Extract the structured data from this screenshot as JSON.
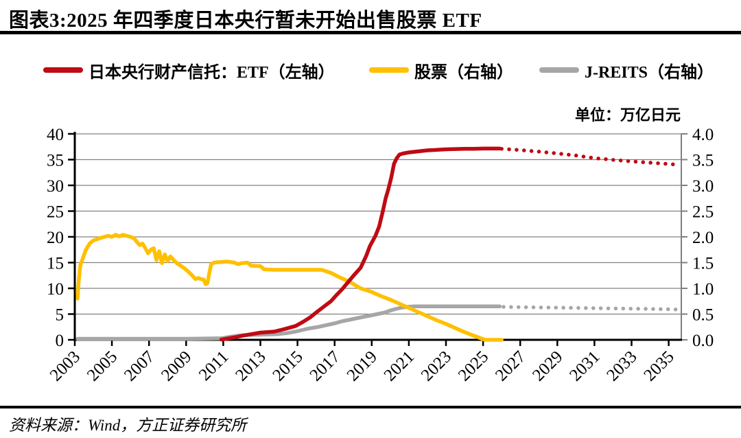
{
  "title": "图表3:2025 年四季度日本央行暂未开始出售股票 ETF",
  "unit_label": "单位：万亿日元",
  "source": "资料来源：Wind，方正证券研究所",
  "colors": {
    "etf_red": "#BE0B14",
    "stocks_yellow": "#FFC000",
    "jreits_gray": "#A6A6A6",
    "gridline": "#808080",
    "axis_black": "#000000",
    "right_axis_gray": "#7F7F7F"
  },
  "legend": [
    {
      "label": "日本央行财产信托：ETF（左轴）",
      "color": "#BE0B14"
    },
    {
      "label": "股票（右轴）",
      "color": "#FFC000"
    },
    {
      "label": "J-REITS（右轴）",
      "color": "#A6A6A6"
    }
  ],
  "chart_data": {
    "type": "line",
    "title": "2025 年四季度日本央行暂未开始出售股票 ETF",
    "unit": "万亿日元",
    "x_axis": {
      "ticks": [
        2003,
        2005,
        2007,
        2009,
        2011,
        2013,
        2015,
        2017,
        2019,
        2021,
        2023,
        2025,
        2027,
        2029,
        2031,
        2033,
        2035
      ],
      "range": [
        2003,
        2035.5
      ]
    },
    "y_left": {
      "tick_labels": [
        "0",
        "5",
        "10",
        "15",
        "20",
        "25",
        "30",
        "35",
        "40"
      ],
      "range": [
        0,
        40
      ]
    },
    "y_right": {
      "tick_labels": [
        "0.0",
        "0.5",
        "1.0",
        "1.5",
        "2.0",
        "2.5",
        "3.0",
        "3.5",
        "4.0"
      ],
      "range": [
        0,
        4
      ]
    },
    "forecast_start": 2026,
    "series": [
      {
        "name": "日本央行财产信托：ETF（左轴）",
        "key": "etf",
        "axis": "left",
        "color": "#BE0B14",
        "solid": [
          [
            2010.9,
            0.05
          ],
          [
            2011.3,
            0.3
          ],
          [
            2011.7,
            0.55
          ],
          [
            2012.1,
            0.85
          ],
          [
            2012.5,
            1.1
          ],
          [
            2013.0,
            1.4
          ],
          [
            2013.75,
            1.6
          ],
          [
            2014.3,
            2.1
          ],
          [
            2014.9,
            2.7
          ],
          [
            2015.3,
            3.5
          ],
          [
            2015.7,
            4.4
          ],
          [
            2016.0,
            5.3
          ],
          [
            2016.4,
            6.4
          ],
          [
            2016.8,
            7.5
          ],
          [
            2017.1,
            8.7
          ],
          [
            2017.4,
            9.8
          ],
          [
            2017.7,
            11.1
          ],
          [
            2018.0,
            12.4
          ],
          [
            2018.4,
            14.0
          ],
          [
            2018.7,
            16.3
          ],
          [
            2018.9,
            18.2
          ],
          [
            2019.2,
            20.2
          ],
          [
            2019.4,
            22.0
          ],
          [
            2019.6,
            25.0
          ],
          [
            2019.75,
            27.5
          ],
          [
            2019.9,
            29.3
          ],
          [
            2020.05,
            31.5
          ],
          [
            2020.2,
            34.2
          ],
          [
            2020.35,
            35.3
          ],
          [
            2020.5,
            36.0
          ],
          [
            2020.7,
            36.2
          ],
          [
            2021.0,
            36.4
          ],
          [
            2021.5,
            36.6
          ],
          [
            2022.0,
            36.8
          ],
          [
            2022.5,
            36.9
          ],
          [
            2023.0,
            37.0
          ],
          [
            2023.5,
            37.05
          ],
          [
            2024.0,
            37.1
          ],
          [
            2024.5,
            37.1
          ],
          [
            2025.0,
            37.15
          ],
          [
            2025.5,
            37.15
          ],
          [
            2025.9,
            37.15
          ]
        ],
        "dotted": [
          [
            2026.0,
            37.1
          ],
          [
            2027.0,
            36.85
          ],
          [
            2028.0,
            36.55
          ],
          [
            2029.0,
            36.2
          ],
          [
            2030.0,
            35.8
          ],
          [
            2031.0,
            35.3
          ],
          [
            2032.0,
            34.95
          ],
          [
            2033.0,
            34.65
          ],
          [
            2034.0,
            34.4
          ],
          [
            2035.0,
            34.15
          ],
          [
            2035.5,
            34.0
          ]
        ]
      },
      {
        "name": "股票（右轴）",
        "key": "stocks",
        "axis": "right",
        "color": "#FFC000",
        "solid": [
          [
            2003.15,
            0.8
          ],
          [
            2003.2,
            1.1
          ],
          [
            2003.3,
            1.45
          ],
          [
            2003.45,
            1.6
          ],
          [
            2003.6,
            1.75
          ],
          [
            2003.8,
            1.87
          ],
          [
            2004.0,
            1.93
          ],
          [
            2004.3,
            1.97
          ],
          [
            2004.6,
            2.0
          ],
          [
            2004.8,
            2.02
          ],
          [
            2005.0,
            2.0
          ],
          [
            2005.2,
            2.04
          ],
          [
            2005.4,
            2.01
          ],
          [
            2005.6,
            2.04
          ],
          [
            2005.8,
            2.02
          ],
          [
            2006.0,
            2.0
          ],
          [
            2006.2,
            1.97
          ],
          [
            2006.35,
            1.9
          ],
          [
            2006.5,
            1.84
          ],
          [
            2006.65,
            1.87
          ],
          [
            2006.8,
            1.78
          ],
          [
            2006.95,
            1.68
          ],
          [
            2007.1,
            1.75
          ],
          [
            2007.25,
            1.78
          ],
          [
            2007.4,
            1.55
          ],
          [
            2007.55,
            1.72
          ],
          [
            2007.7,
            1.49
          ],
          [
            2007.85,
            1.66
          ],
          [
            2008.0,
            1.53
          ],
          [
            2008.15,
            1.62
          ],
          [
            2008.3,
            1.56
          ],
          [
            2008.5,
            1.49
          ],
          [
            2008.7,
            1.44
          ],
          [
            2008.9,
            1.39
          ],
          [
            2009.1,
            1.33
          ],
          [
            2009.3,
            1.26
          ],
          [
            2009.5,
            1.18
          ],
          [
            2009.65,
            1.2
          ],
          [
            2009.8,
            1.18
          ],
          [
            2009.95,
            1.17
          ],
          [
            2010.05,
            1.08
          ],
          [
            2010.15,
            1.1
          ],
          [
            2010.25,
            1.3
          ],
          [
            2010.35,
            1.47
          ],
          [
            2010.5,
            1.5
          ],
          [
            2010.8,
            1.51
          ],
          [
            2011.2,
            1.52
          ],
          [
            2011.6,
            1.5
          ],
          [
            2011.8,
            1.47
          ],
          [
            2012.0,
            1.49
          ],
          [
            2012.3,
            1.5
          ],
          [
            2012.5,
            1.44
          ],
          [
            2013.0,
            1.43
          ],
          [
            2013.2,
            1.37
          ],
          [
            2013.7,
            1.36
          ],
          [
            2014.5,
            1.36
          ],
          [
            2015.3,
            1.36
          ],
          [
            2016.3,
            1.36
          ],
          [
            2016.8,
            1.3
          ],
          [
            2017.3,
            1.21
          ],
          [
            2017.8,
            1.13
          ],
          [
            2018.4,
            1.0
          ],
          [
            2019.0,
            0.93
          ],
          [
            2019.5,
            0.85
          ],
          [
            2020.0,
            0.78
          ],
          [
            2020.5,
            0.7
          ],
          [
            2021.0,
            0.62
          ],
          [
            2021.5,
            0.54
          ],
          [
            2022.0,
            0.46
          ],
          [
            2022.5,
            0.38
          ],
          [
            2023.0,
            0.31
          ],
          [
            2023.5,
            0.23
          ],
          [
            2024.0,
            0.15
          ],
          [
            2024.5,
            0.08
          ],
          [
            2025.1,
            0.0
          ],
          [
            2026.0,
            0.0
          ]
        ],
        "dotted": []
      },
      {
        "name": "J-REITS（右轴）",
        "key": "jreits",
        "axis": "right",
        "color": "#A6A6A6",
        "solid": [
          [
            2003.15,
            0.02
          ],
          [
            2005.0,
            0.02
          ],
          [
            2007.0,
            0.02
          ],
          [
            2009.0,
            0.02
          ],
          [
            2010.0,
            0.025
          ],
          [
            2010.9,
            0.03
          ],
          [
            2011.4,
            0.06
          ],
          [
            2011.9,
            0.085
          ],
          [
            2012.4,
            0.095
          ],
          [
            2012.9,
            0.1
          ],
          [
            2013.4,
            0.105
          ],
          [
            2013.9,
            0.11
          ],
          [
            2014.4,
            0.13
          ],
          [
            2014.9,
            0.16
          ],
          [
            2015.6,
            0.22
          ],
          [
            2016.1,
            0.25
          ],
          [
            2016.6,
            0.29
          ],
          [
            2017.0,
            0.32
          ],
          [
            2017.4,
            0.36
          ],
          [
            2017.8,
            0.39
          ],
          [
            2018.2,
            0.42
          ],
          [
            2018.6,
            0.45
          ],
          [
            2018.9,
            0.47
          ],
          [
            2019.3,
            0.5
          ],
          [
            2019.7,
            0.53
          ],
          [
            2020.0,
            0.57
          ],
          [
            2020.3,
            0.6
          ],
          [
            2020.6,
            0.625
          ],
          [
            2020.9,
            0.64
          ],
          [
            2021.3,
            0.65
          ],
          [
            2022.0,
            0.65
          ],
          [
            2023.0,
            0.65
          ],
          [
            2024.0,
            0.65
          ],
          [
            2025.0,
            0.65
          ],
          [
            2025.9,
            0.65
          ]
        ],
        "dotted": [
          [
            2026.1,
            0.64
          ],
          [
            2027.0,
            0.635
          ],
          [
            2028.0,
            0.63
          ],
          [
            2029.0,
            0.625
          ],
          [
            2030.0,
            0.62
          ],
          [
            2031.0,
            0.615
          ],
          [
            2032.0,
            0.61
          ],
          [
            2033.0,
            0.605
          ],
          [
            2034.0,
            0.6
          ],
          [
            2035.0,
            0.595
          ],
          [
            2035.5,
            0.59
          ]
        ]
      }
    ]
  }
}
